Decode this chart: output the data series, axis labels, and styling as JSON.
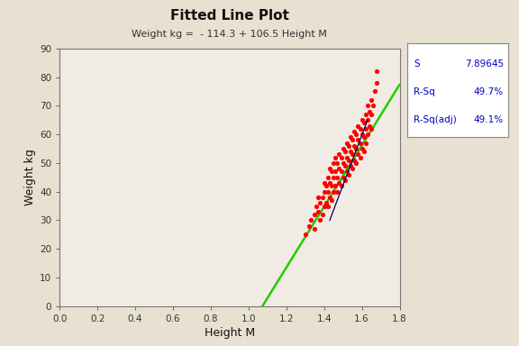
{
  "title": "Fitted Line Plot",
  "subtitle": "Weight kg =  - 114.3 + 106.5 Height M",
  "xlabel": "Height M",
  "ylabel": "Weight kg",
  "xlim": [
    0.0,
    1.8
  ],
  "ylim": [
    0,
    90
  ],
  "xticks": [
    0.0,
    0.2,
    0.4,
    0.6,
    0.8,
    1.0,
    1.2,
    1.4,
    1.6,
    1.8
  ],
  "yticks": [
    0,
    10,
    20,
    30,
    40,
    50,
    60,
    70,
    80,
    90
  ],
  "intercept": -114.3,
  "slope": 106.5,
  "background_color": "#e8e0d0",
  "plot_bg_color": "#f0ece4",
  "line_color": "#22cc00",
  "scatter_color": "#ff0000",
  "annot_color": "#000060",
  "legend_s": "7.89645",
  "legend_rsq": "49.7%",
  "legend_rsqadj": "49.1%",
  "scatter_points": [
    [
      1.3,
      25.0
    ],
    [
      1.32,
      28.0
    ],
    [
      1.33,
      30.0
    ],
    [
      1.35,
      27.0
    ],
    [
      1.35,
      32.0
    ],
    [
      1.36,
      35.0
    ],
    [
      1.37,
      33.0
    ],
    [
      1.37,
      38.0
    ],
    [
      1.38,
      30.0
    ],
    [
      1.38,
      36.0
    ],
    [
      1.39,
      32.0
    ],
    [
      1.39,
      38.0
    ],
    [
      1.4,
      35.0
    ],
    [
      1.4,
      40.0
    ],
    [
      1.4,
      43.0
    ],
    [
      1.41,
      36.0
    ],
    [
      1.41,
      42.0
    ],
    [
      1.42,
      35.0
    ],
    [
      1.42,
      40.0
    ],
    [
      1.42,
      45.0
    ],
    [
      1.43,
      38.0
    ],
    [
      1.43,
      43.0
    ],
    [
      1.43,
      48.0
    ],
    [
      1.44,
      37.0
    ],
    [
      1.44,
      42.0
    ],
    [
      1.44,
      47.0
    ],
    [
      1.45,
      40.0
    ],
    [
      1.45,
      45.0
    ],
    [
      1.45,
      50.0
    ],
    [
      1.46,
      42.0
    ],
    [
      1.46,
      47.0
    ],
    [
      1.46,
      52.0
    ],
    [
      1.47,
      40.0
    ],
    [
      1.47,
      45.0
    ],
    [
      1.47,
      50.0
    ],
    [
      1.48,
      43.0
    ],
    [
      1.48,
      48.0
    ],
    [
      1.48,
      53.0
    ],
    [
      1.49,
      42.0
    ],
    [
      1.49,
      47.0
    ],
    [
      1.49,
      52.0
    ],
    [
      1.5,
      45.0
    ],
    [
      1.5,
      50.0
    ],
    [
      1.5,
      55.0
    ],
    [
      1.51,
      44.0
    ],
    [
      1.51,
      49.0
    ],
    [
      1.51,
      54.0
    ],
    [
      1.52,
      47.0
    ],
    [
      1.52,
      52.0
    ],
    [
      1.52,
      57.0
    ],
    [
      1.53,
      46.0
    ],
    [
      1.53,
      51.0
    ],
    [
      1.53,
      56.0
    ],
    [
      1.54,
      49.0
    ],
    [
      1.54,
      54.0
    ],
    [
      1.54,
      59.0
    ],
    [
      1.55,
      48.0
    ],
    [
      1.55,
      53.0
    ],
    [
      1.55,
      58.0
    ],
    [
      1.56,
      51.0
    ],
    [
      1.56,
      56.0
    ],
    [
      1.56,
      61.0
    ],
    [
      1.57,
      50.0
    ],
    [
      1.57,
      55.0
    ],
    [
      1.57,
      60.0
    ],
    [
      1.58,
      53.0
    ],
    [
      1.58,
      58.0
    ],
    [
      1.58,
      63.0
    ],
    [
      1.59,
      52.0
    ],
    [
      1.59,
      57.0
    ],
    [
      1.59,
      62.0
    ],
    [
      1.6,
      55.0
    ],
    [
      1.6,
      60.0
    ],
    [
      1.6,
      65.0
    ],
    [
      1.61,
      54.0
    ],
    [
      1.61,
      59.0
    ],
    [
      1.61,
      64.0
    ],
    [
      1.62,
      57.0
    ],
    [
      1.62,
      62.0
    ],
    [
      1.62,
      67.0
    ],
    [
      1.63,
      60.0
    ],
    [
      1.63,
      65.0
    ],
    [
      1.63,
      70.0
    ],
    [
      1.64,
      63.0
    ],
    [
      1.64,
      68.0
    ],
    [
      1.65,
      62.0
    ],
    [
      1.65,
      67.0
    ],
    [
      1.65,
      72.0
    ],
    [
      1.66,
      70.0
    ],
    [
      1.67,
      75.0
    ],
    [
      1.68,
      78.0
    ],
    [
      1.68,
      82.0
    ]
  ],
  "annot_line": [
    [
      1.43,
      30.0
    ],
    [
      1.63,
      65.0
    ]
  ]
}
